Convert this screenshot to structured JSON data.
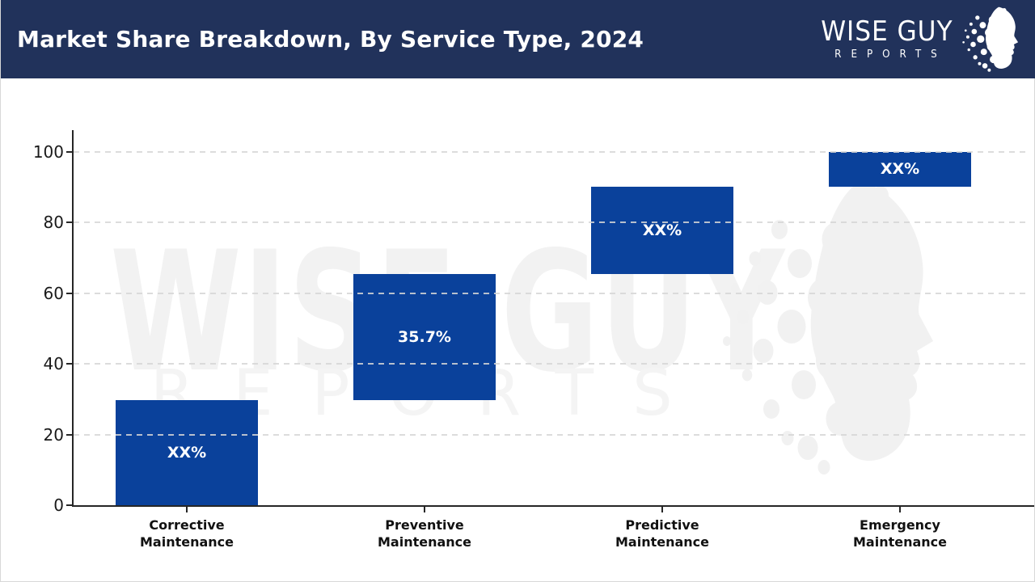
{
  "header": {
    "title": "Market Share Breakdown, By Service Type, 2024",
    "logo": {
      "line1": "WISE GUY",
      "line2": "REPORTS"
    }
  },
  "watermark": {
    "line1": "WISE GUY",
    "line2": "REPORTS"
  },
  "chart_data": {
    "type": "bar",
    "subtype": "floating-segment-waterfall",
    "title": "Market Share Breakdown, By Service Type, 2024",
    "categories": [
      "Corrective Maintenance",
      "Preventive Maintenance",
      "Predictive Maintenance",
      "Emergency Maintenance"
    ],
    "bars": [
      {
        "category": "Corrective Maintenance",
        "start": 0,
        "end": 29.7,
        "value": 29.7,
        "label": "XX%"
      },
      {
        "category": "Preventive Maintenance",
        "start": 29.7,
        "end": 65.4,
        "value": 35.7,
        "label": "35.7%"
      },
      {
        "category": "Predictive Maintenance",
        "start": 65.4,
        "end": 90.0,
        "value": 24.6,
        "label": "XX%"
      },
      {
        "category": "Emergency Maintenance",
        "start": 90.0,
        "end": 100.0,
        "value": 10.0,
        "label": "XX%"
      }
    ],
    "yticks": [
      0,
      20,
      40,
      60,
      80,
      100
    ],
    "ylim": [
      0,
      105.5
    ],
    "xlabel": "",
    "ylabel": "",
    "grid": "horizontal-dashed",
    "legend": "none",
    "bar_color": "#0A419B",
    "bar_label_color": "#FFFFFF"
  },
  "colors": {
    "header_bg": "#21325B",
    "bar": "#0A419B",
    "grid": "#D6D6D6",
    "axis": "#262626",
    "watermark": "#F2F2F2",
    "page_border": "#D8D8D8"
  }
}
